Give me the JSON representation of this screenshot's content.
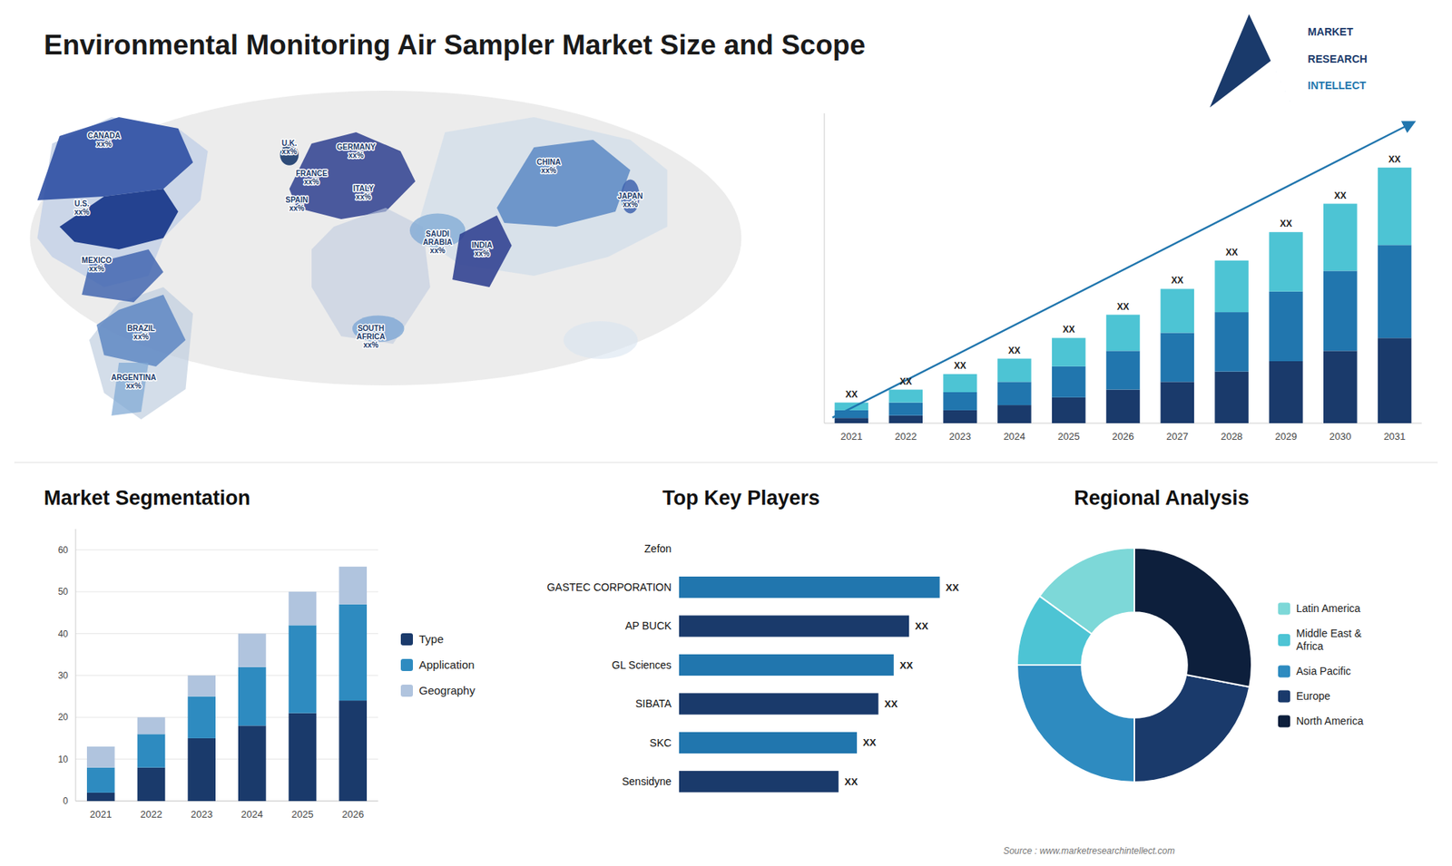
{
  "title": "Environmental Monitoring Air Sampler Market Size and Scope",
  "annotations": [
    "MARKET",
    "RESEARCH",
    "INTELLECT",
    "Source : www.marketresearchintellect.com"
  ],
  "chart_data": [
    {
      "type": "map",
      "annotations": [
        "CANADA\nxx%",
        "U.S.\nxx%",
        "MEXICO\nxx%",
        "BRAZIL\nxx%",
        "ARGENTINA\nxx%",
        "U.K.\nxx%",
        "FRANCE\nxx%",
        "SPAIN\nxx%",
        "GERMANY\nxx%",
        "ITALY\nxx%",
        "SAUDI\nARABIA\nxx%",
        "SOUTH\nAFRICA\nxx%",
        "CHINA\nxx%",
        "INDIA\nxx%",
        "JAPAN\nxx%"
      ]
    },
    {
      "type": "bar",
      "stacked": true,
      "categories": [
        2021,
        2022,
        2023,
        2024,
        2025,
        2026,
        2027,
        2028,
        2029,
        2030,
        2031
      ],
      "series": [
        {
          "color": "#1a3a6b",
          "values": [
            2,
            3,
            5,
            7,
            10,
            13,
            16,
            20,
            24,
            28,
            33
          ]
        },
        {
          "color": "#2176ae",
          "values": [
            3,
            5,
            7,
            9,
            12,
            15,
            19,
            23,
            27,
            31,
            36
          ]
        },
        {
          "color": "#4dc4d4",
          "values": [
            3,
            5,
            7,
            9,
            11,
            14,
            17,
            20,
            23,
            26,
            30
          ]
        }
      ],
      "ylim": [
        0,
        120
      ],
      "grid": false,
      "tick_labels": "x",
      "annotations": [
        "XX",
        "XX",
        "XX",
        "XX",
        "XX",
        "XX",
        "XX",
        "XX",
        "XX",
        "XX",
        "XX"
      ]
    },
    {
      "type": "bar",
      "title": "Market Segmentation",
      "stacked": true,
      "categories": [
        2021,
        2022,
        2023,
        2024,
        2025,
        2026
      ],
      "series": [
        {
          "name": "Type",
          "color": "#1a3a6b",
          "values": [
            2,
            8,
            15,
            18,
            21,
            24
          ]
        },
        {
          "name": "Application",
          "color": "#2e8bc0",
          "values": [
            6,
            8,
            10,
            14,
            21,
            23
          ]
        },
        {
          "name": "Geography",
          "color": "#b0c4de",
          "values": [
            5,
            4,
            5,
            8,
            8,
            9
          ]
        }
      ],
      "ylim": [
        0,
        65
      ],
      "yticks": [
        0,
        10,
        20,
        30,
        40,
        50,
        60
      ],
      "grid": true,
      "legend": "right"
    },
    {
      "type": "bar",
      "title": "Top Key Players",
      "orientation": "horizontal",
      "categories": [
        "Zefon",
        "GASTEC CORPORATION",
        "AP BUCK",
        "GL Sciences",
        "SIBATA",
        "SKC",
        "Sensidyne"
      ],
      "values": [
        0,
        85,
        75,
        70,
        65,
        58,
        52
      ],
      "colors": [
        "#1a3a6b",
        "#2176ae",
        "#1a3a6b",
        "#2176ae",
        "#1a3a6b",
        "#2176ae",
        "#1a3a6b"
      ],
      "xlim": [
        -70,
        110
      ],
      "tick_labels": "y",
      "annotations": [
        "XX",
        "XX",
        "XX",
        "XX",
        "XX",
        "XX"
      ]
    },
    {
      "type": "donut",
      "title": "Regional Analysis",
      "categories": [
        "Latin America",
        "Middle East &\nAfrica",
        "Asia Pacific",
        "Europe",
        "North America"
      ],
      "values": [
        15,
        10,
        25,
        22,
        28
      ],
      "colors": [
        "#7dd8d8",
        "#4dc4d4",
        "#2e8bc0",
        "#1a3a6b",
        "#0d1f3c"
      ],
      "legend": "right"
    }
  ]
}
